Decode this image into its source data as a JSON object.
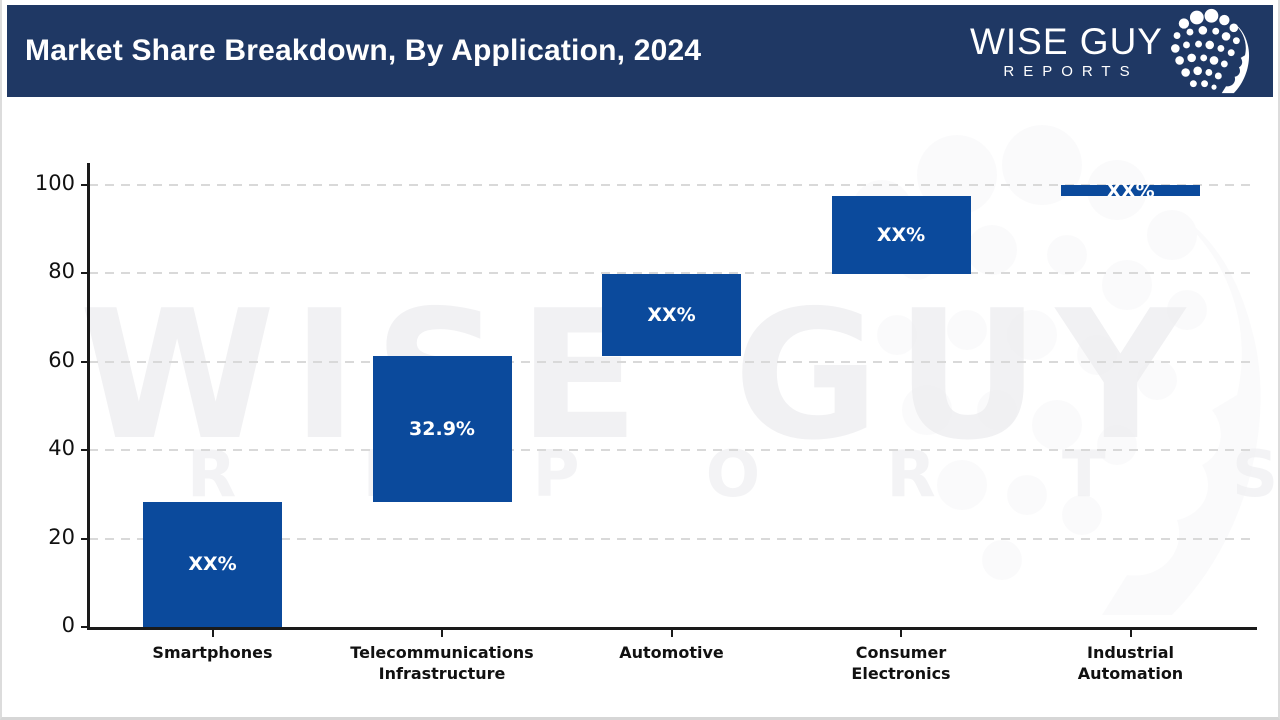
{
  "header": {
    "title": "Market Share Breakdown, By Application, 2024",
    "logo": {
      "line1": "WISE GUY",
      "line2": "REPORTS"
    }
  },
  "watermark": {
    "line1": "WISE GUY",
    "line2": "R E P O R T S"
  },
  "colors": {
    "header_bg": "#1f3864",
    "bar": "#0b4a9c",
    "grid": "#d9d9d9",
    "axis": "#1a1a1a"
  },
  "chart_data": {
    "type": "bar",
    "subtype": "floating-waterfall",
    "title": "Market Share Breakdown, By Application, 2024",
    "categories": [
      "Smartphones",
      "Telecommunications Infrastructure",
      "Automotive",
      "Consumer Electronics",
      "Industrial Automation"
    ],
    "category_label_lines": [
      [
        "Smartphones"
      ],
      [
        "Telecommunications",
        "Infrastructure"
      ],
      [
        "Automotive"
      ],
      [
        "Consumer",
        "Electronics"
      ],
      [
        "Industrial",
        "Automation"
      ]
    ],
    "segments": [
      {
        "category": "Smartphones",
        "start": 0,
        "end": 28.3,
        "label": "XX%"
      },
      {
        "category": "Telecommunications Infrastructure",
        "start": 28.3,
        "end": 61.2,
        "label": "32.9%"
      },
      {
        "category": "Automotive",
        "start": 61.2,
        "end": 79.9,
        "label": "XX%"
      },
      {
        "category": "Consumer Electronics",
        "start": 79.9,
        "end": 97.4,
        "label": "XX%"
      },
      {
        "category": "Industrial Automation",
        "start": 97.4,
        "end": 100,
        "label": "XX%"
      }
    ],
    "yticks": [
      0,
      20,
      40,
      60,
      80,
      100
    ],
    "ylim": [
      0,
      105
    ],
    "grid": "dashed-horizontal",
    "legend": "none",
    "bar_color": "#0b4a9c",
    "xlabel": "",
    "ylabel": ""
  }
}
